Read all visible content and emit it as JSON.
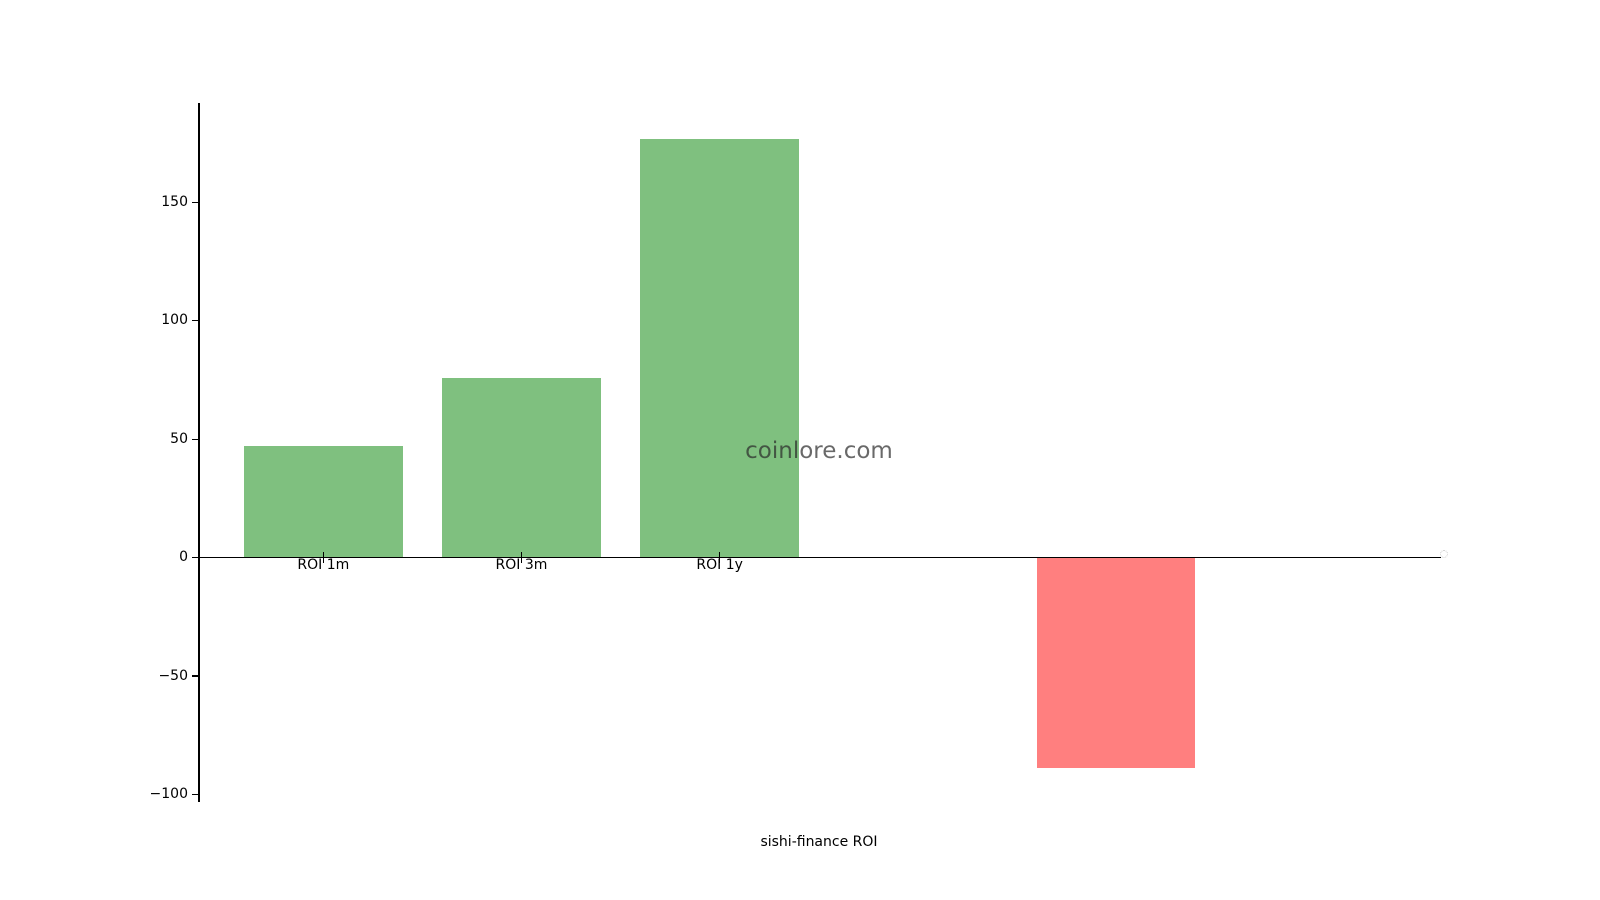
{
  "chart_data": {
    "type": "bar",
    "title": "",
    "xlabel": "sishi-finance ROI",
    "ylabel": "",
    "watermark": "coinlore.com",
    "categories": [
      "ROI 1m",
      "ROI 3m",
      "ROI 1y",
      "",
      ""
    ],
    "values": [
      47,
      76,
      177,
      0,
      -89
    ],
    "bar_colors": [
      "#7fc07f",
      "#7fc07f",
      "#7fc07f",
      "#7fc07f",
      "#ff7f7f"
    ],
    "positive_color": "#7fc07f",
    "negative_color": "#ff7f7f",
    "yticks": [
      150,
      100,
      50,
      0,
      -50,
      -100
    ],
    "ylim": [
      -103,
      192
    ],
    "bar_width_fraction": 0.8,
    "grid": false,
    "legend": false,
    "background_color": "#ffffff",
    "axis_color": "#000000"
  }
}
